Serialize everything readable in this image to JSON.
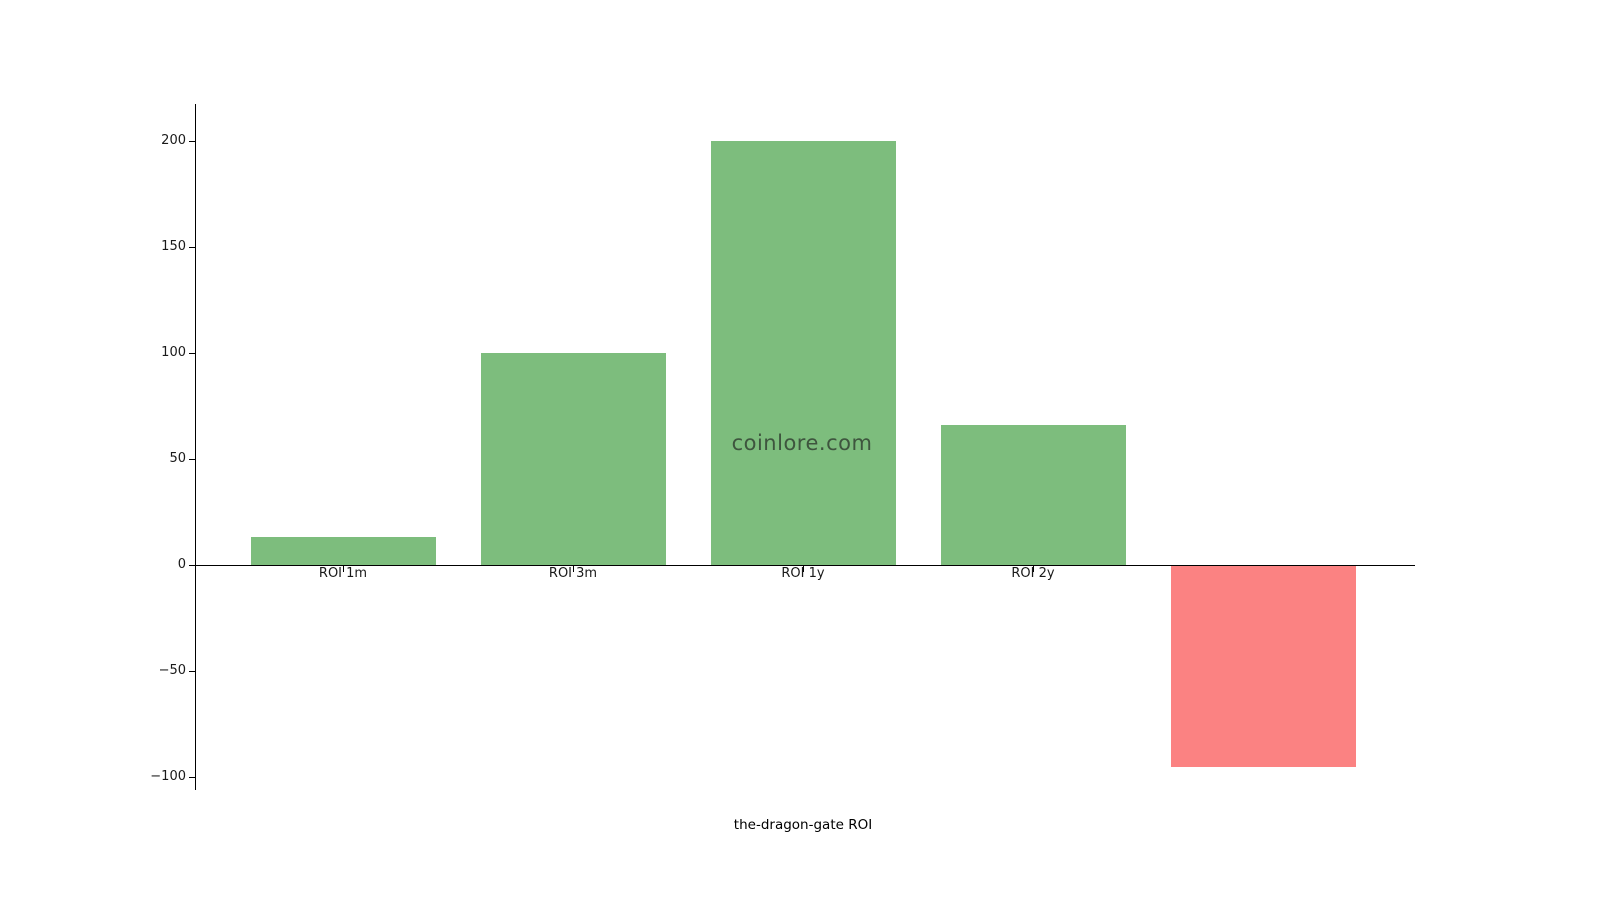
{
  "chart_data": {
    "type": "bar",
    "title": "the-dragon-gate ROI",
    "watermark": "coinlore.com",
    "categories": [
      "ROI 1m",
      "ROI 3m",
      "ROI 1y",
      "ROI 2y",
      ""
    ],
    "values": [
      13,
      100,
      200,
      66,
      -95
    ],
    "series": [
      {
        "name": "ROI",
        "values": [
          13,
          100,
          200,
          66,
          -95
        ]
      }
    ],
    "positive_color": "#7dbd7d",
    "negative_color": "#fb8282",
    "axis_color": "#000000",
    "tick_label_color": "#1a1a1a",
    "watermark_color": "#2d372d",
    "y_ticks": [
      200,
      150,
      100,
      50,
      0,
      -50,
      -100
    ],
    "y_tick_labels": [
      "200",
      "150",
      "100",
      "50",
      "0",
      "−50",
      "−100"
    ],
    "ylim": [
      -106,
      217
    ],
    "xlabel": "",
    "ylabel": "",
    "grid": false,
    "legend_position": "none",
    "background": "#ffffff"
  }
}
